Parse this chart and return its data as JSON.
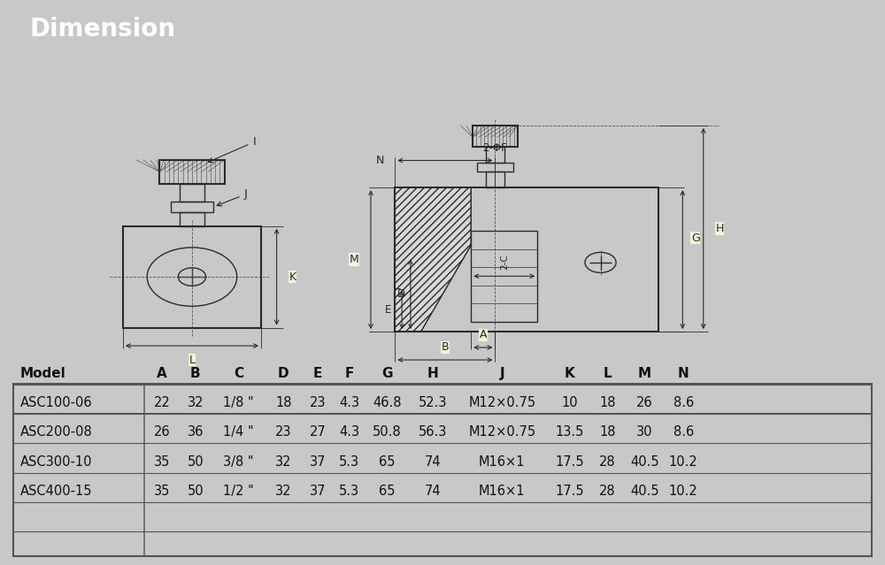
{
  "title": "Dimension",
  "title_bg_color": "#787878",
  "title_text_color": "#ffffff",
  "diagram_bg_color": "#f5f0d8",
  "table_bg_color": "#fdfce8",
  "outer_bg_color": "#c8c8c8",
  "table_headers": [
    "Model",
    "A",
    "B",
    "C",
    "D",
    "E",
    "F",
    "G",
    "H",
    "J",
    "K",
    "L",
    "M",
    "N"
  ],
  "table_rows": [
    [
      "ASC100-06",
      "22",
      "32",
      "1/8 \"",
      "18",
      "23",
      "4.3",
      "46.8",
      "52.3",
      "M12×0.75",
      "10",
      "18",
      "26",
      "8.6"
    ],
    [
      "ASC200-08",
      "26",
      "36",
      "1/4 \"",
      "23",
      "27",
      "4.3",
      "50.8",
      "56.3",
      "M12×0.75",
      "13.5",
      "18",
      "30",
      "8.6"
    ],
    [
      "ASC300-10",
      "35",
      "50",
      "3/8 \"",
      "32",
      "37",
      "5.3",
      "65",
      "74",
      "M16×1",
      "17.5",
      "28",
      "40.5",
      "10.2"
    ],
    [
      "ASC400-15",
      "35",
      "50",
      "1/2 \"",
      "32",
      "37",
      "5.3",
      "65",
      "74",
      "M16×1",
      "17.5",
      "28",
      "40.5",
      "10.2"
    ]
  ]
}
